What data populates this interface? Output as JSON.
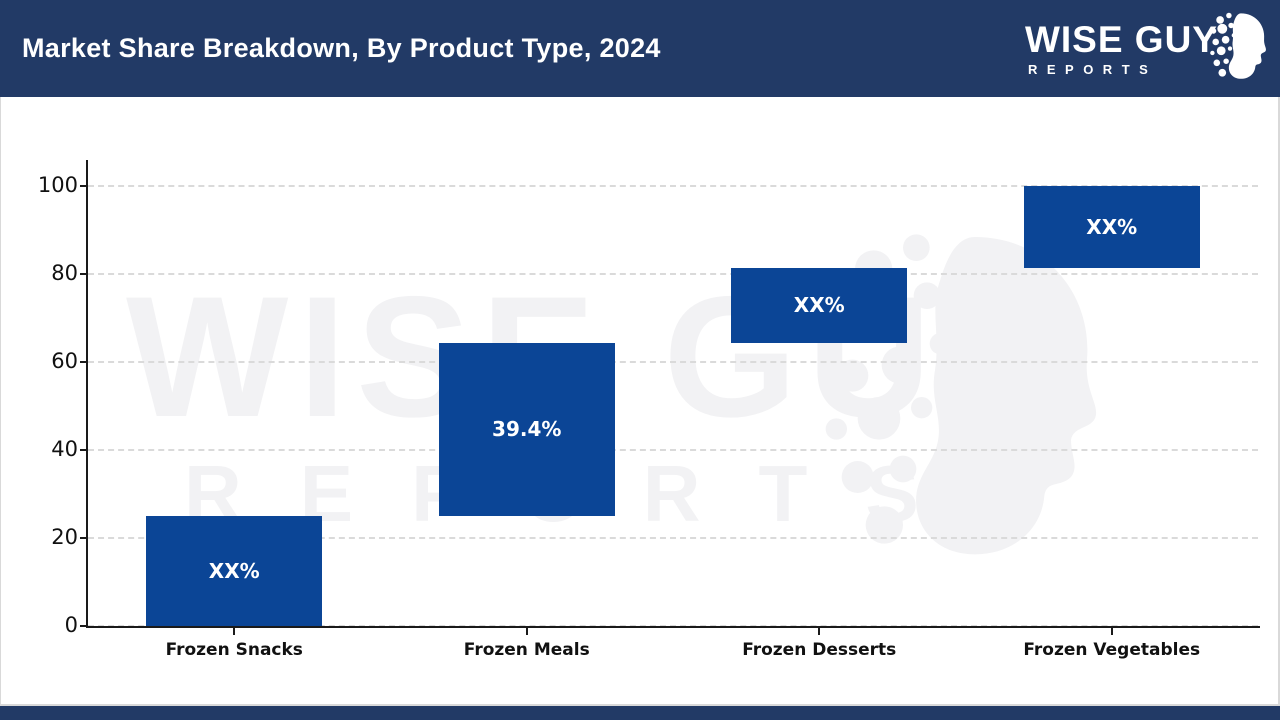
{
  "header": {
    "title": "Market Share Breakdown, By Product Type, 2024",
    "bg_color": "#223a66",
    "logo": {
      "line1": "WISE GUY",
      "line2": "REPORTS"
    }
  },
  "watermark": {
    "line1": "WISE GUY",
    "line2": "REPORTS"
  },
  "footer": {
    "bg_color": "#223a66"
  },
  "chart_data": {
    "type": "bar",
    "subtype": "waterfall",
    "title": "Market Share Breakdown, By Product Type, 2024",
    "categories": [
      "Frozen Snacks",
      "Frozen Meals",
      "Frozen Desserts",
      "Frozen Vegetables"
    ],
    "segments": [
      {
        "category": "Frozen Snacks",
        "start": 0,
        "end": 25,
        "label": "XX%"
      },
      {
        "category": "Frozen Meals",
        "start": 25,
        "end": 64.4,
        "label": "39.4%"
      },
      {
        "category": "Frozen Desserts",
        "start": 64.4,
        "end": 81.3,
        "label": "XX%"
      },
      {
        "category": "Frozen Vegetables",
        "start": 81.3,
        "end": 100,
        "label": "XX%"
      }
    ],
    "yticks": [
      0,
      20,
      40,
      60,
      80,
      100
    ],
    "ylim": [
      0,
      100
    ],
    "xlabel": "",
    "ylabel": "",
    "grid": "horizontal-dashed",
    "legend": "none",
    "bar_color": "#0b4596",
    "bar_label_color": "#ffffff"
  }
}
